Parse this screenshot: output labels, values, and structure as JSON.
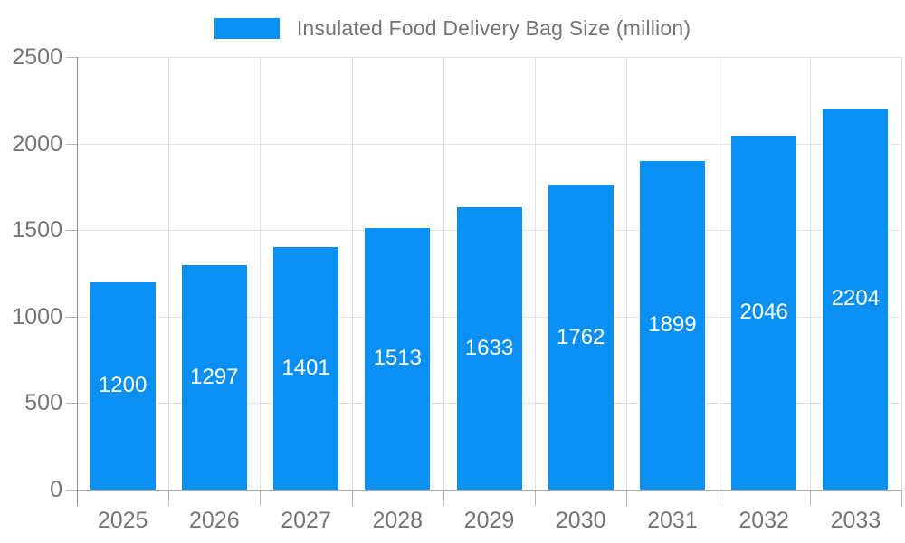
{
  "legend": {
    "label": "Insulated Food Delivery Bag Size (million)"
  },
  "chart_data": {
    "type": "bar",
    "title": "Insulated Food Delivery Bag Size (million)",
    "categories": [
      "2025",
      "2026",
      "2027",
      "2028",
      "2029",
      "2030",
      "2031",
      "2032",
      "2033"
    ],
    "values": [
      1200,
      1297,
      1401,
      1513,
      1633,
      1762,
      1899,
      2046,
      2204
    ],
    "xlabel": "",
    "ylabel": "",
    "ylim": [
      0,
      2500
    ],
    "yticks": [
      0,
      500,
      1000,
      1500,
      2000,
      2500
    ],
    "grid": true,
    "legend_position": "top-center",
    "bar_label_position": "inside-center",
    "colors": {
      "bar": "#0a90f5",
      "bar_label_text": "#ffffff",
      "axis_text": "#757575",
      "gridline": "#e3e3e3",
      "axis_line": "#8c8c8c",
      "tick": "#b5b5b5",
      "background": "#ffffff"
    }
  }
}
